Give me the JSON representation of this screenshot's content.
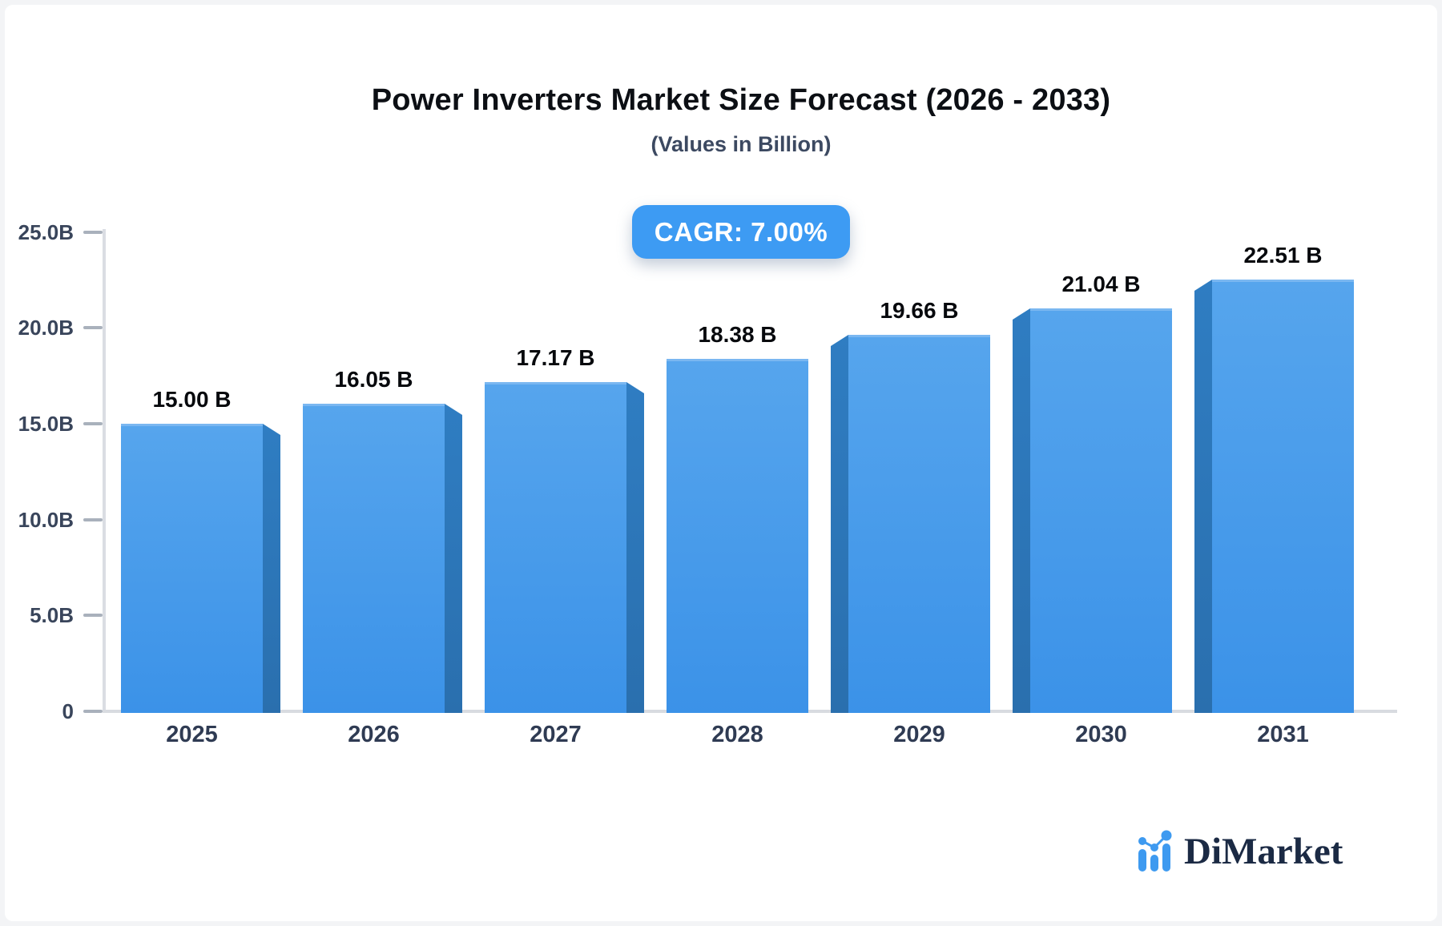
{
  "header": {
    "title": "Power Inverters Market Size Forecast (2026 - 2033)",
    "subtitle": "(Values in Billion)",
    "cagr_badge": "CAGR: 7.00%"
  },
  "chart": {
    "y_axis": {
      "ticks": [
        {
          "label": "0",
          "value": 0
        },
        {
          "label": "5.0B",
          "value": 5
        },
        {
          "label": "10.0B",
          "value": 10
        },
        {
          "label": "15.0B",
          "value": 15
        },
        {
          "label": "20.0B",
          "value": 20
        },
        {
          "label": "25.0B",
          "value": 25
        }
      ]
    },
    "bars": [
      {
        "year": "2025",
        "value": 15.0,
        "label": "15.00 B"
      },
      {
        "year": "2026",
        "value": 16.05,
        "label": "16.05 B"
      },
      {
        "year": "2027",
        "value": 17.17,
        "label": "17.17 B"
      },
      {
        "year": "2028",
        "value": 18.38,
        "label": "18.38 B"
      },
      {
        "year": "2029",
        "value": 19.66,
        "label": "19.66 B"
      },
      {
        "year": "2030",
        "value": 21.04,
        "label": "21.04 B"
      },
      {
        "year": "2031",
        "value": 22.51,
        "label": "22.51 B"
      }
    ]
  },
  "logo": {
    "text": "DiMarket",
    "icon": "mini-bar-line-chart-icon"
  },
  "colors": {
    "bar_face_top": "#56A5ED",
    "bar_face_bottom": "#3B92E8",
    "bar_top_edge": "#7AB7F1",
    "bar_side": "#2E78BA",
    "badge_background": "#3D9BF3",
    "badge_text": "#FFFFFF",
    "axis_line": "#D8DBE0",
    "tick_dash": "#A9B1BC",
    "tick_text": "#39455B",
    "year_text": "#2F3B53",
    "value_text": "#07090D",
    "title_text": "#0C0F14",
    "subtitle_text": "#3C4961",
    "logo_text": "#1B2A44",
    "logo_icon": "#3E9AF0"
  },
  "chart_data": {
    "type": "bar",
    "title": "Power Inverters Market Size Forecast (2026 - 2033)",
    "subtitle": "(Values in Billion)",
    "annotation": "CAGR: 7.00%",
    "categories": [
      "2025",
      "2026",
      "2027",
      "2028",
      "2029",
      "2030",
      "2031"
    ],
    "values": [
      15.0,
      16.05,
      17.17,
      18.38,
      19.66,
      21.04,
      22.51
    ],
    "value_labels": [
      "15.00 B",
      "16.05 B",
      "17.17 B",
      "18.38 B",
      "19.66 B",
      "21.04 B",
      "22.51 B"
    ],
    "xlabel": "",
    "ylabel": "",
    "ylim": [
      0,
      25
    ],
    "ytick_labels": [
      "0",
      "5.0B",
      "10.0B",
      "15.0B",
      "20.0B",
      "25.0B"
    ],
    "grid": false,
    "legend": "none",
    "bar_style": "3d-gradient-blue"
  }
}
